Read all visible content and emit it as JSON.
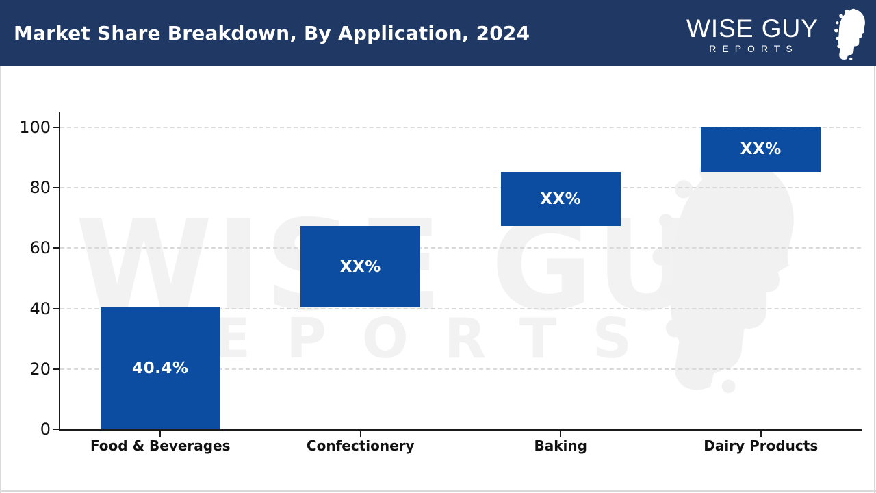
{
  "colors": {
    "header_bg": "#1F3864",
    "bar": "#0D4DA1",
    "bar_label": "#FFFFFF",
    "axis": "#1a1a1a",
    "gridline": "#d9d9d9",
    "watermark": "#f2f2f2",
    "frame": "#d9d9d9"
  },
  "header": {
    "title": "Market Share Breakdown, By Application, 2024",
    "logo": {
      "line1": "WISE GUY",
      "line2": "REPORTS"
    }
  },
  "watermark": {
    "line1": "WISE GUY",
    "line2": "REPORTS"
  },
  "chart_data": {
    "type": "bar",
    "subtype": "waterfall",
    "title": "Market Share Breakdown, By Application, 2024",
    "categories": [
      "Food & Beverages",
      "Confectionery",
      "Baking",
      "Dairy Products"
    ],
    "segments": [
      {
        "category": "Food & Beverages",
        "start": 0,
        "end": 40.4,
        "label": "40.4%"
      },
      {
        "category": "Confectionery",
        "start": 40.4,
        "end": 67.3,
        "label": "XX%"
      },
      {
        "category": "Baking",
        "start": 67.3,
        "end": 85.3,
        "label": "XX%"
      },
      {
        "category": "Dairy Products",
        "start": 85.3,
        "end": 100,
        "label": "XX%"
      }
    ],
    "increments": [
      40.4,
      26.9,
      18.0,
      14.7
    ],
    "xlabel": "",
    "ylabel": "",
    "ylim": [
      0,
      105
    ],
    "yticks": [
      0,
      20,
      40,
      60,
      80,
      100
    ],
    "grid": "horizontal-dashed",
    "legend": "none",
    "bar_color": "#0D4DA1",
    "label_color": "#FFFFFF"
  }
}
